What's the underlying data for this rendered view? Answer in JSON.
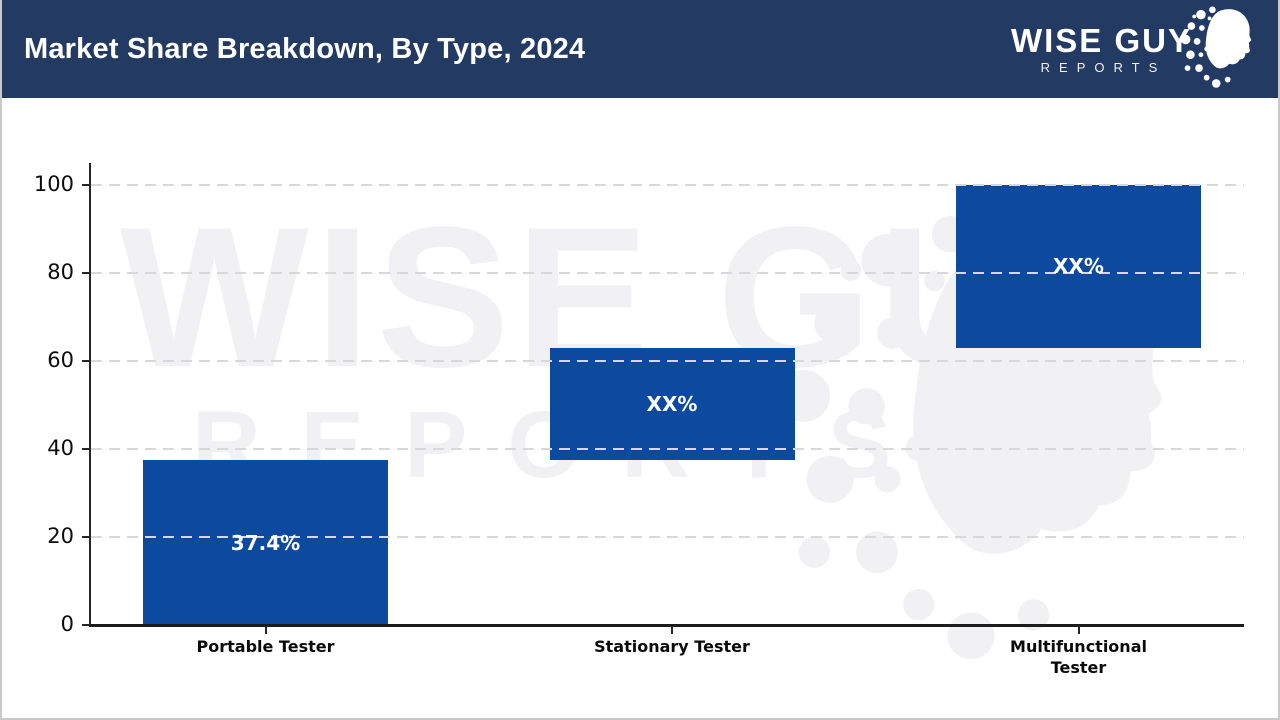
{
  "header": {
    "title": "Market Share Breakdown, By Type, 2024",
    "logo": {
      "line1": "WISE GUY",
      "line2": "REPORTS"
    }
  },
  "watermark": {
    "line1": "WISE GUY",
    "line2": "REPORTS"
  },
  "chart_data": {
    "type": "bar",
    "subtype": "segmented-waterfall-market-share",
    "title": "Market Share Breakdown, By Type, 2024",
    "categories": [
      "Portable Tester",
      "Stationary Tester",
      "Multifunctional\nTester"
    ],
    "segments": [
      {
        "category": "Portable Tester",
        "start": 0,
        "end": 37.4,
        "label": "37.4%"
      },
      {
        "category": "Stationary Tester",
        "start": 37.4,
        "end": 63,
        "label": "XX%"
      },
      {
        "category": "Multifunctional Tester",
        "start": 63,
        "end": 100,
        "label": "XX%"
      }
    ],
    "xlabel": "",
    "ylabel": "",
    "ylim": [
      0,
      100
    ],
    "yticks": [
      0,
      20,
      40,
      60,
      80,
      100
    ],
    "grid": "horizontal-dashed",
    "legend": "none",
    "colors": {
      "bar": "#0c4aa0",
      "bar_label": "#ffffff",
      "header_bg": "#233a63",
      "grid": "#d8d8d8",
      "axis": "#262626",
      "watermark": "#f1f1f3"
    }
  }
}
